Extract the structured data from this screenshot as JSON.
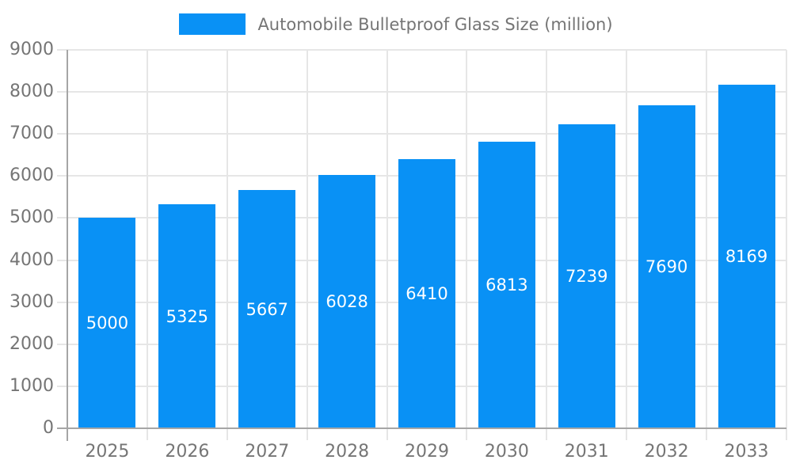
{
  "chart_data": {
    "type": "bar",
    "title": "Automobile Bulletproof Glass Size (million)",
    "legend_position": "top",
    "categories": [
      "2025",
      "2026",
      "2027",
      "2028",
      "2029",
      "2030",
      "2031",
      "2032",
      "2033"
    ],
    "values": [
      5000,
      5325,
      5667,
      6028,
      6410,
      6813,
      7239,
      7690,
      8169
    ],
    "xlabel": "",
    "ylabel": "",
    "ylim": [
      0,
      9000
    ],
    "ytick_step": 1000,
    "yticks": [
      "0",
      "1000",
      "2000",
      "3000",
      "4000",
      "5000",
      "6000",
      "7000",
      "8000",
      "9000"
    ],
    "grid": true,
    "bar_value_labels": true
  },
  "colors": {
    "bar": "#0991f5",
    "grid": "#e6e6e6",
    "axis": "#a6a6a6",
    "text": "#757575",
    "bar_label": "#ffffff",
    "background": "#ffffff"
  }
}
